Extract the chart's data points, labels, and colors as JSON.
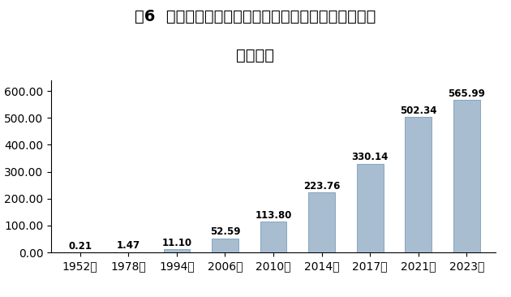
{
  "title_line1": "图6  新中国成立以来主要年份保山社会消费品零售总额",
  "title_line2": "（亿元）",
  "categories": [
    "1952年",
    "1978年",
    "1994年",
    "2006年",
    "2010年",
    "2014年",
    "2017年",
    "2021年",
    "2023年"
  ],
  "values": [
    0.21,
    1.47,
    11.1,
    52.59,
    113.8,
    223.76,
    330.14,
    502.34,
    565.99
  ],
  "bar_color": "#A8BDD0",
  "bar_edge_color": "#7A9DB8",
  "ylim": [
    0,
    640
  ],
  "ytick_values": [
    0,
    100,
    200,
    300,
    400,
    500,
    600
  ],
  "ytick_labels": [
    "0.00",
    "100.00",
    "200.00",
    "300.00",
    "400.00",
    "500.00",
    "600.00"
  ],
  "background_color": "#FFFFFF",
  "title_fontsize": 14,
  "tick_fontsize": 10,
  "value_label_fontsize": 8.5,
  "bar_width": 0.55
}
